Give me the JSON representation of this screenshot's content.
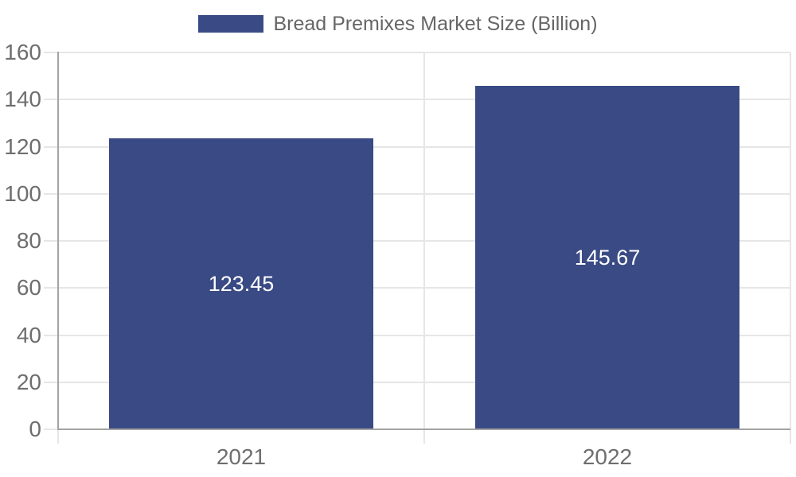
{
  "chart_data": {
    "type": "bar",
    "title": "",
    "legend": {
      "label": "Bread Premixes Market Size (Billion)",
      "position": "top-center"
    },
    "categories": [
      "2021",
      "2022"
    ],
    "series": [
      {
        "name": "Bread Premixes Market Size (Billion)",
        "values": [
          123.45,
          145.67
        ],
        "value_labels": [
          "123.45",
          "145.67"
        ],
        "color": "#3A4A84"
      }
    ],
    "xlabel": "",
    "ylabel": "",
    "ylim": [
      0,
      160
    ],
    "ytick_step": 20,
    "y_tick_labels": [
      "0",
      "20",
      "40",
      "60",
      "80",
      "100",
      "120",
      "140",
      "160"
    ],
    "grid": true,
    "colors": {
      "bar": "#3A4A84",
      "gridline": "#E6E6E6",
      "axis": "#A3A3A3",
      "tick_label": "#6E6E6E",
      "legend_text": "#666666",
      "value_label": "#FFFFFF",
      "background": "#FFFFFF"
    }
  }
}
